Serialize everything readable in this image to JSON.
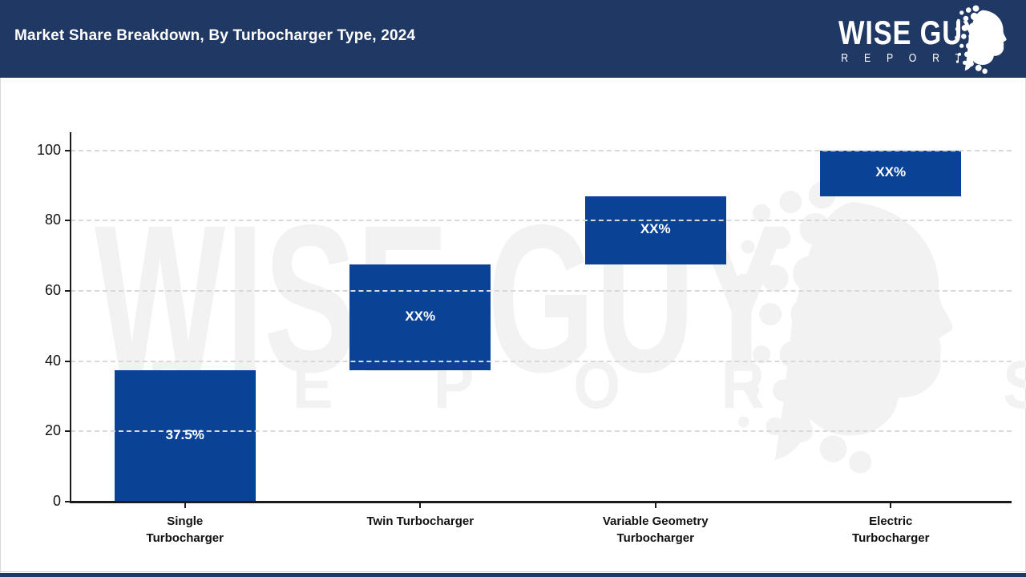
{
  "header": {
    "title": "Market Share Breakdown, By Turbocharger Type, 2024",
    "logo": {
      "name": "WISE GUY",
      "tagline": "R E P O R T S"
    }
  },
  "watermark": {
    "text": "WISE GUY",
    "tagline": "R E P O R T S"
  },
  "colors": {
    "header_bg": "#203864",
    "bar": "#0a4296",
    "gridline": "#d9d9d9",
    "axis": "#1a1a1a",
    "bar_label": "#ffffff",
    "watermark": "#f2f2f2"
  },
  "chart_data": {
    "type": "bar",
    "subtype": "waterfall-style floating bars",
    "title": "Market Share Breakdown, By Turbocharger Type, 2024",
    "xlabel": "",
    "ylabel": "",
    "ylim": [
      0,
      100
    ],
    "yticks": [
      0,
      20,
      40,
      60,
      80,
      100
    ],
    "grid": "horizontal dashed",
    "legend": "none",
    "categories": [
      "Single\nTurbocharger",
      "Twin Turbocharger",
      "Variable Geometry\nTurbocharger",
      "Electric\nTurbocharger"
    ],
    "segments": [
      {
        "category": "Single Turbocharger",
        "start": 0,
        "end": 37.5,
        "label": "37.5%"
      },
      {
        "category": "Twin Turbocharger",
        "start": 37.5,
        "end": 67.5,
        "label": "XX%"
      },
      {
        "category": "Variable Geometry Turbocharger",
        "start": 67.5,
        "end": 87,
        "label": "XX%"
      },
      {
        "category": "Electric Turbocharger",
        "start": 87,
        "end": 100,
        "label": "XX%"
      }
    ]
  }
}
